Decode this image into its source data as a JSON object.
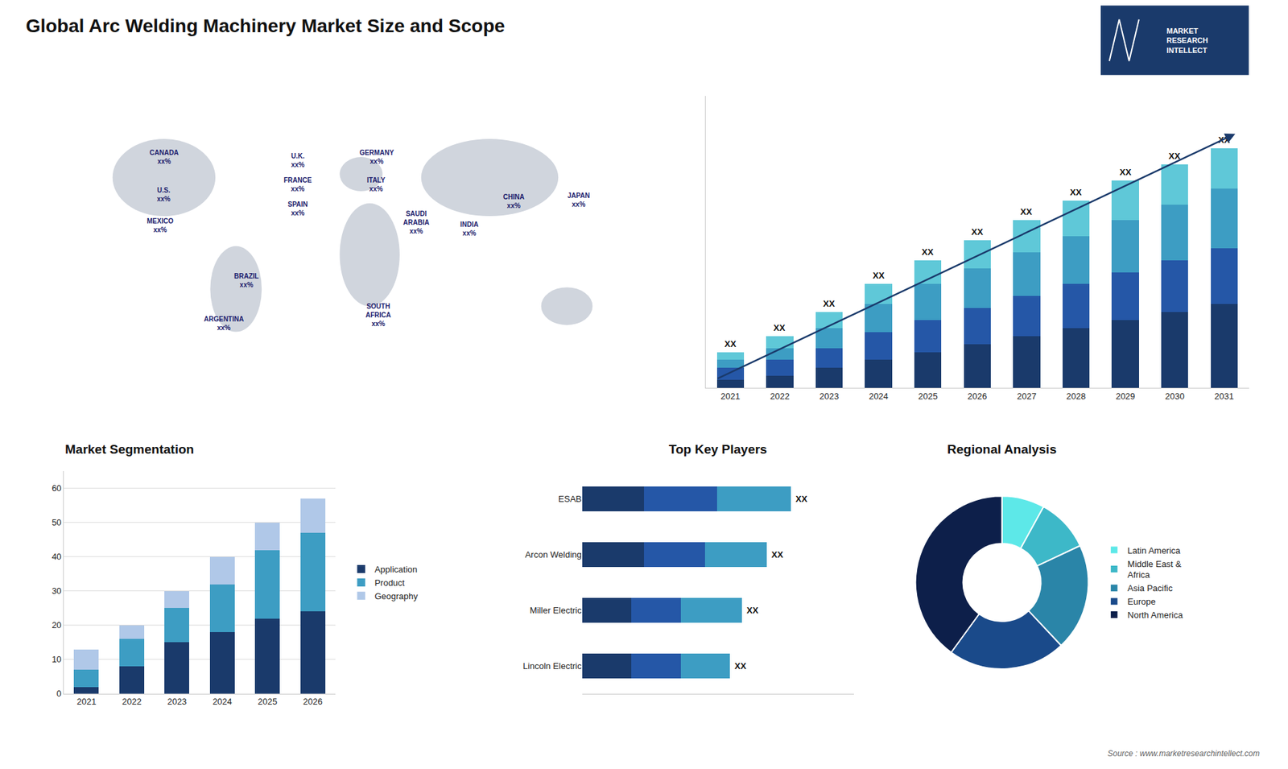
{
  "title": "Global Arc Welding Machinery Market Size and Scope",
  "annotations": [
    "Source : www.marketresearchintellect.com",
    "MARKET\nRESEARCH\nINTELLECT"
  ],
  "chart_data": [
    {
      "type": "map",
      "annotations": [
        "CANADA\nxx%",
        "U.S.\nxx%",
        "MEXICO\nxx%",
        "BRAZIL\nxx%",
        "ARGENTINA\nxx%",
        "U.K.\nxx%",
        "FRANCE\nxx%",
        "SPAIN\nxx%",
        "GERMANY\nxx%",
        "ITALY\nxx%",
        "SAUDI\nARABIA\nxx%",
        "SOUTH\nAFRICA\nxx%",
        "CHINA\nxx%",
        "INDIA\nxx%",
        "JAPAN\nxx%"
      ]
    },
    {
      "type": "bar",
      "stacked": true,
      "categories": [
        "2021",
        "2022",
        "2023",
        "2024",
        "2025",
        "2026",
        "2027",
        "2028",
        "2029",
        "2030",
        "2031"
      ],
      "series": [
        {
          "color": "#1a3a6b",
          "values": [
            2,
            3,
            5,
            7,
            9,
            11,
            13,
            15,
            17,
            19,
            21
          ]
        },
        {
          "color": "#2557a7",
          "values": [
            3,
            4,
            5,
            7,
            8,
            9,
            10,
            11,
            12,
            13,
            14
          ]
        },
        {
          "color": "#3d9dc3",
          "values": [
            2,
            3,
            5,
            7,
            9,
            10,
            11,
            12,
            13,
            14,
            15
          ]
        },
        {
          "color": "#5fc8d8",
          "values": [
            2,
            3,
            4,
            5,
            6,
            7,
            8,
            9,
            10,
            10,
            10
          ]
        }
      ],
      "ylim": [
        0,
        73.2
      ],
      "tick_labels": "x",
      "grid": false,
      "annotations": [
        "XX",
        "XX",
        "XX",
        "XX",
        "XX",
        "XX",
        "XX",
        "XX",
        "XX",
        "XX",
        "XX"
      ]
    },
    {
      "type": "bar",
      "title": "Market Segmentation",
      "stacked": true,
      "categories": [
        "2021",
        "2022",
        "2023",
        "2024",
        "2025",
        "2026"
      ],
      "series": [
        {
          "name": "Application",
          "color": "#1a3a6b",
          "values": [
            2,
            8,
            15,
            18,
            22,
            24
          ]
        },
        {
          "name": "Product",
          "color": "#3d9dc3",
          "values": [
            5,
            8,
            10,
            14,
            20,
            23
          ]
        },
        {
          "name": "Geography",
          "color": "#b0c8e8",
          "values": [
            6,
            4,
            5,
            8,
            8,
            10
          ]
        }
      ],
      "ylim": [
        0,
        65
      ],
      "yticks": [
        0,
        10,
        20,
        30,
        40,
        50,
        60
      ],
      "grid": true,
      "legend": "right"
    },
    {
      "type": "bar",
      "title": "Top Key Players",
      "orientation": "horizontal",
      "stacked": true,
      "categories": [
        "Lincoln Electric",
        "Miller Electric",
        "Arcon Welding",
        "ESAB"
      ],
      "series": [
        {
          "color": "#1a3a6b",
          "values": [
            4,
            4,
            5,
            5
          ]
        },
        {
          "color": "#2557a7",
          "values": [
            4,
            4,
            5,
            6
          ]
        },
        {
          "color": "#3d9dc3",
          "values": [
            4,
            5,
            5,
            6
          ]
        }
      ],
      "xlim": [
        0,
        22.1
      ],
      "tick_labels": "y",
      "grid": false,
      "annotations": [
        "XX",
        "XX",
        "XX",
        "XX"
      ]
    },
    {
      "type": "pie",
      "title": "Regional Analysis",
      "categories": [
        "Latin America",
        "Middle East &\nAfrica",
        "Asia Pacific",
        "Europe",
        "North America"
      ],
      "values": [
        8,
        10,
        20,
        22,
        40
      ],
      "colors": [
        "#5de8e8",
        "#3db8c8",
        "#2a85a8",
        "#1a4a8a",
        "#0d1f4a"
      ],
      "legend": "right"
    }
  ]
}
